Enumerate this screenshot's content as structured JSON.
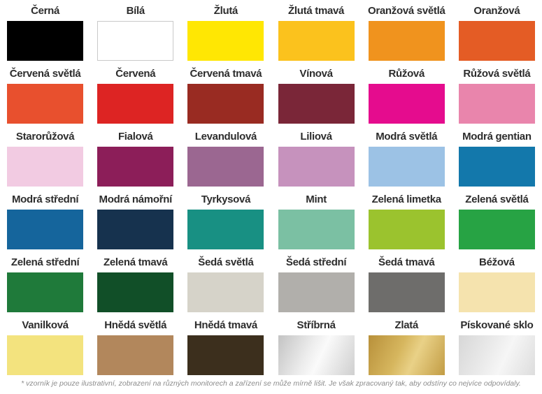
{
  "page": {
    "background": "#ffffff",
    "footnote": "* vzorník je pouze ilustrativní, zobrazení na různých monitorech a zařízení se může mírně lišit. Je však zpracovaný tak, aby odstíny co nejvíce odpovídaly."
  },
  "palette": {
    "label_color": "#2d2d2d",
    "columns": 6,
    "rows": 6,
    "swatches": [
      {
        "id": "cerna",
        "name": "Černá",
        "color": "#000000"
      },
      {
        "id": "bila",
        "name": "Bílá",
        "color": "#ffffff",
        "border": "#c9c9c9"
      },
      {
        "id": "zluta",
        "name": "Žlutá",
        "color": "#ffe703"
      },
      {
        "id": "zluta-tmava",
        "name": "Žlutá tmavá",
        "color": "#fbc21d"
      },
      {
        "id": "oranzova-svetla",
        "name": "Oranžová světlá",
        "color": "#f0931e"
      },
      {
        "id": "oranzova",
        "name": "Oranžová",
        "color": "#e45c25"
      },
      {
        "id": "cervena-svetla",
        "name": "Červená světlá",
        "color": "#e8502e"
      },
      {
        "id": "cervena",
        "name": "Červená",
        "color": "#dd2423"
      },
      {
        "id": "cervena-tmava",
        "name": "Červená tmavá",
        "color": "#992b22"
      },
      {
        "id": "vinova",
        "name": "Vínová",
        "color": "#7a2638"
      },
      {
        "id": "ruzova",
        "name": "Růžová",
        "color": "#e50c8e"
      },
      {
        "id": "ruzova-svetla",
        "name": "Růžová světlá",
        "color": "#e985ac"
      },
      {
        "id": "staroruzova",
        "name": "Starorůžová",
        "color": "#f2cbe2"
      },
      {
        "id": "fialova",
        "name": "Fialová",
        "color": "#8c1e59"
      },
      {
        "id": "levandulova",
        "name": "Levandulová",
        "color": "#9b6791"
      },
      {
        "id": "liliova",
        "name": "Liliová",
        "color": "#c692bd"
      },
      {
        "id": "modra-svetla",
        "name": "Modrá světlá",
        "color": "#9cc2e5"
      },
      {
        "id": "modra-gentian",
        "name": "Modrá gentian",
        "color": "#1378ab"
      },
      {
        "id": "modra-stredni",
        "name": "Modrá střední",
        "color": "#15659c"
      },
      {
        "id": "modra-namorni",
        "name": "Modrá námořní",
        "color": "#16324e"
      },
      {
        "id": "tyrkysova",
        "name": "Tyrkysová",
        "color": "#189083"
      },
      {
        "id": "mint",
        "name": "Mint",
        "color": "#7bc0a3"
      },
      {
        "id": "zelena-limetka",
        "name": "Zelená limetka",
        "color": "#9bc32e"
      },
      {
        "id": "zelena-svetla",
        "name": "Zelená světlá",
        "color": "#27a344"
      },
      {
        "id": "zelena-stredni",
        "name": "Zelená střední",
        "color": "#1f7a3a"
      },
      {
        "id": "zelena-tmava",
        "name": "Zelená tmavá",
        "color": "#114f28"
      },
      {
        "id": "seda-svetla",
        "name": "Šedá světlá",
        "color": "#d6d3c9"
      },
      {
        "id": "seda-stredni",
        "name": "Šedá střední",
        "color": "#b1afab"
      },
      {
        "id": "seda-tmava",
        "name": "Šedá tmavá",
        "color": "#6e6d6b"
      },
      {
        "id": "bezova",
        "name": "Béžová",
        "color": "#f5e3ae"
      },
      {
        "id": "vanilkova",
        "name": "Vanilková",
        "color": "#f3e37e"
      },
      {
        "id": "hneda-svetla",
        "name": "Hnědá světlá",
        "color": "#b2875c"
      },
      {
        "id": "hneda-tmava",
        "name": "Hnědá tmavá",
        "color": "#3c2f1d"
      },
      {
        "id": "stribrna",
        "name": "Stříbrná",
        "angle": 115,
        "gradient": [
          "#c3c3c3 0%",
          "#ededed 40%",
          "#fafafa 55%",
          "#cfcfcf 100%"
        ]
      },
      {
        "id": "zlata",
        "name": "Zlatá",
        "angle": 115,
        "gradient": [
          "#b8903a 0%",
          "#d6b65e 40%",
          "#e9d187 60%",
          "#c29c44 100%"
        ]
      },
      {
        "id": "piskovane-sklo",
        "name": "Pískované sklo",
        "angle": 115,
        "gradient": [
          "#d7d7d7 0%",
          "#ebebeb 40%",
          "#f6f6f6 60%",
          "#dddddd 100%"
        ]
      }
    ]
  }
}
